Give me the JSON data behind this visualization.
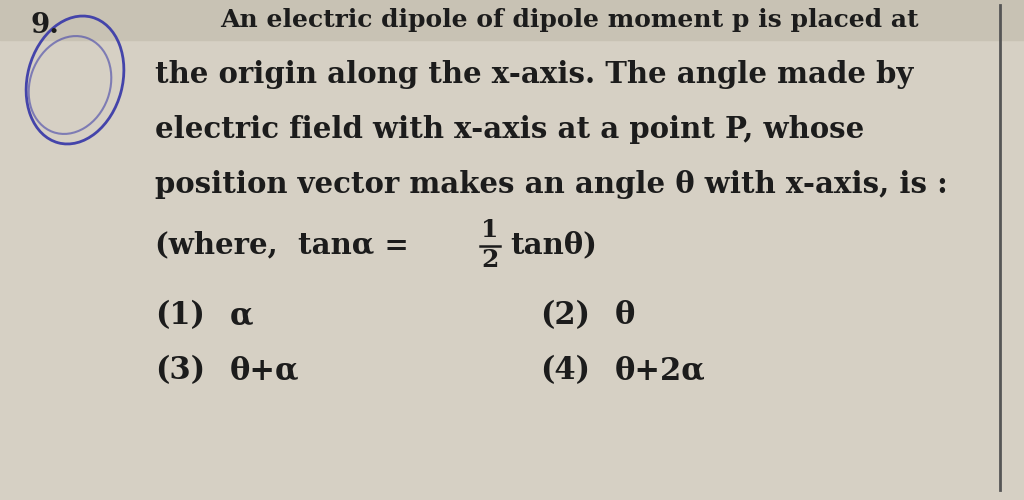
{
  "background_color": "#d6d0c4",
  "question_number": "9.",
  "line1_partial": "An electric dipole of dipole moment p is placed at",
  "line2": "the origin along the x-axis. The angle made by",
  "line3": "electric field with x-axis at a point P, whose",
  "line4": "position vector makes an angle θ with x-axis, is :",
  "where_prefix": "(where,  tanα = ",
  "fraction_num": "1",
  "fraction_den": "2",
  "tan_theta_suffix": "tanθ)",
  "opt1_num": "(1)",
  "opt1_val": "α",
  "opt2_num": "(2)",
  "opt2_val": "θ",
  "opt3_num": "(3)",
  "opt3_val": "θ+α",
  "opt4_num": "(4)",
  "opt4_val": "θ+2α",
  "oval_color": "#4444aa",
  "text_color": "#1c1c1c",
  "right_line_color": "#555555",
  "font_size_top": 18,
  "font_size_body": 21,
  "font_size_where": 21,
  "font_size_options": 22
}
